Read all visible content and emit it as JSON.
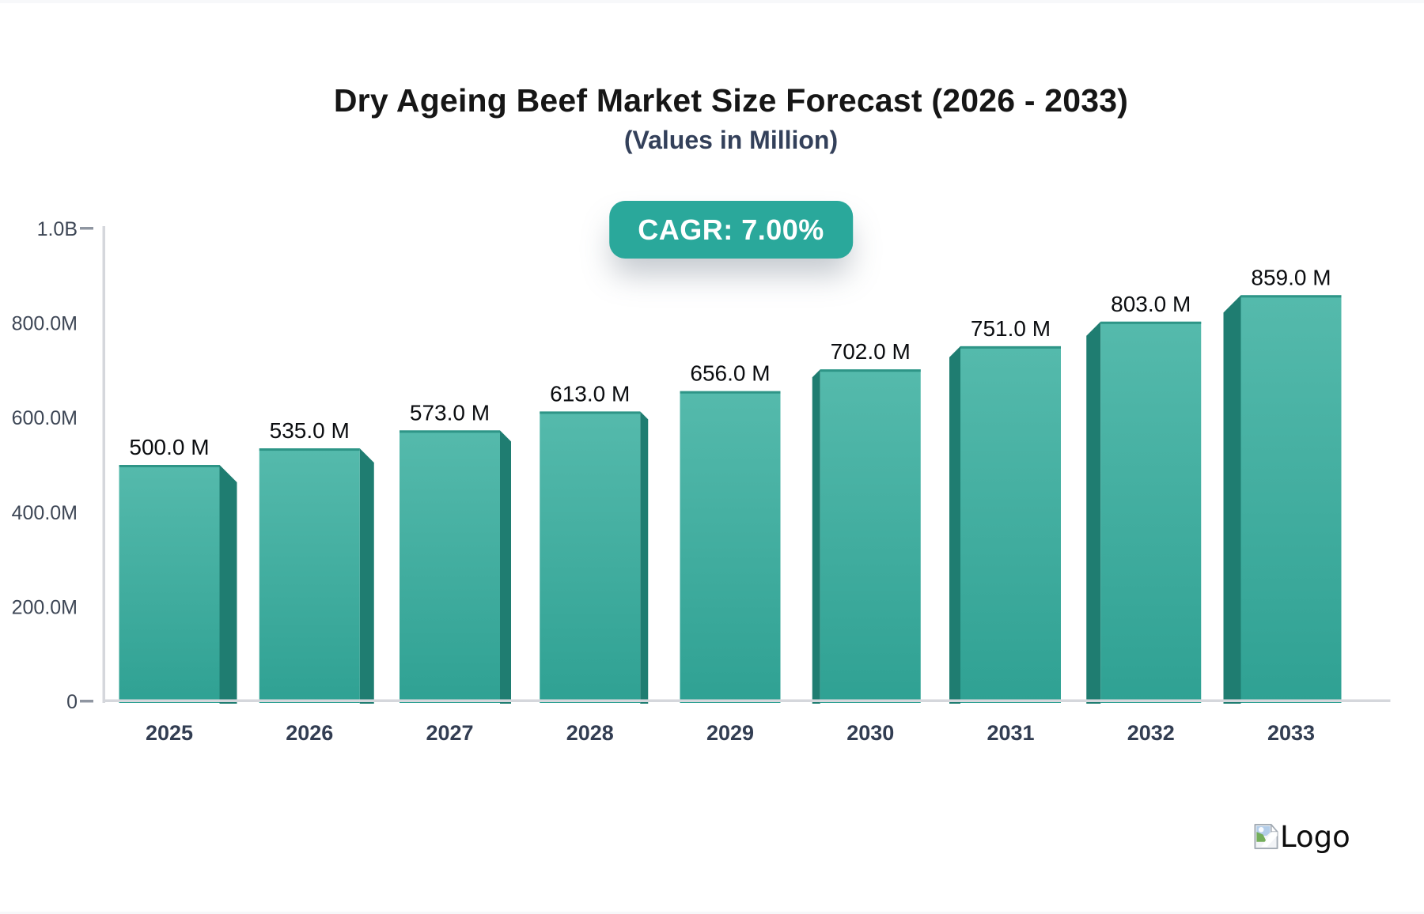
{
  "header": {
    "title": "Dry Ageing Beef Market Size Forecast (2026 - 2033)",
    "subtitle": "(Values in Million)",
    "cagr_label": "CAGR: 7.00%"
  },
  "footer": {
    "alt_text": "Logo"
  },
  "colors": {
    "accent": "#2aa89b",
    "badge_bg": "#2aa89b",
    "badge_text": "#ffffff",
    "bar_face_top": "#55baac",
    "bar_face_bottom": "#2fa193",
    "bar_top_edge": "#2e9587",
    "bar_side": "#1f7d71",
    "axis_line": "#d5d7dc",
    "tick_dash": "#8f96a1",
    "y_label": "#3d4655",
    "x_label": "#323d52",
    "value_label": "#0b0d10",
    "title": "#161616",
    "subtitle": "#33405a"
  },
  "chart_data": {
    "type": "bar",
    "title": "Dry Ageing Beef Market Size Forecast (2026 - 2033)",
    "subtitle": "(Values in Million)",
    "cagr_label": "CAGR: 7.00%",
    "cagr_percent": 7.0,
    "categories": [
      "2025",
      "2026",
      "2027",
      "2028",
      "2029",
      "2030",
      "2031",
      "2032",
      "2033"
    ],
    "values": [
      500,
      535,
      573,
      613,
      656,
      702,
      751,
      803,
      859
    ],
    "value_labels": [
      "500.0 M",
      "535.0 M",
      "573.0 M",
      "613.0 M",
      "656.0 M",
      "702.0 M",
      "751.0 M",
      "803.0 M",
      "859.0 M"
    ],
    "unit": "Million",
    "ylim": [
      0,
      1000
    ],
    "y_axis_ticks": [
      {
        "label": "1.0B",
        "value": 1000,
        "dash": true
      },
      {
        "label": "800.0M",
        "value": 800,
        "dash": false
      },
      {
        "label": "600.0M",
        "value": 600,
        "dash": false
      },
      {
        "label": "400.0M",
        "value": 400,
        "dash": false
      },
      {
        "label": "200.0M",
        "value": 200,
        "dash": false
      },
      {
        "label": "0",
        "value": 0,
        "dash": true
      }
    ],
    "grid": false,
    "legend_position": "none",
    "bar_style": "3d-perspective-center"
  }
}
